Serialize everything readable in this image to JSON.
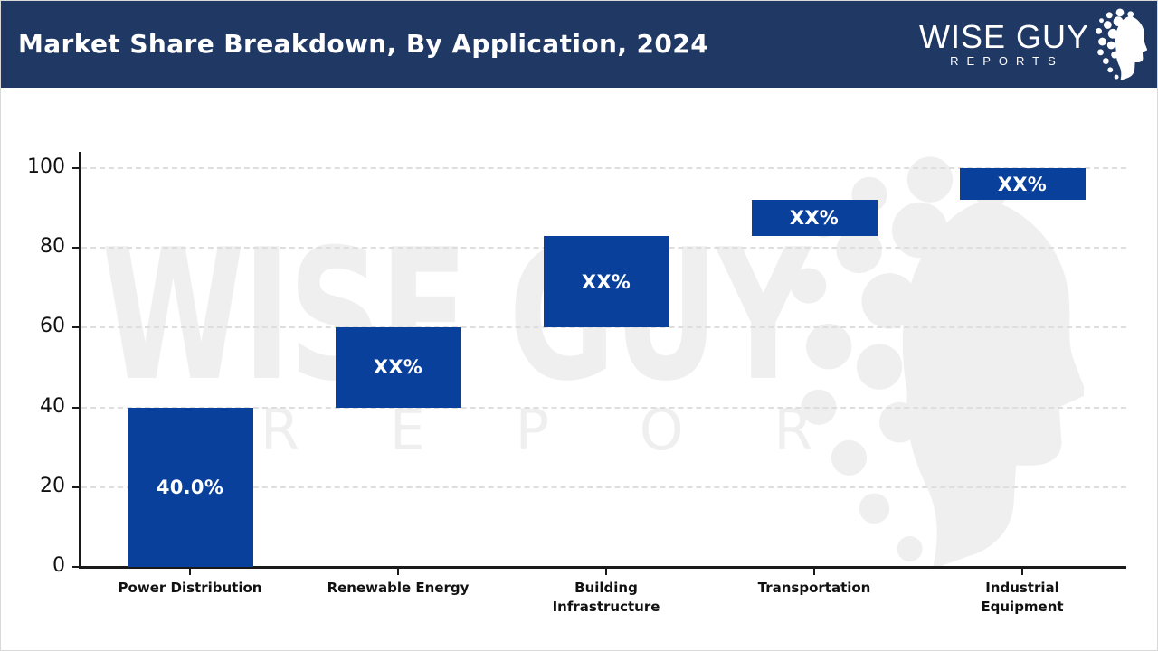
{
  "header": {
    "title": "Market Share Breakdown, By Application, 2024",
    "logo_line1": "WISE GUY",
    "logo_line2": "REPORTS"
  },
  "watermark": {
    "line1": "WISE GUY",
    "line2": "R E P O R T S"
  },
  "chart_data": {
    "type": "waterfall",
    "title": "Market Share Breakdown, By Application, 2024",
    "categories": [
      "Power Distribution",
      "Renewable Energy",
      "Building\nInfrastructure",
      "Transportation",
      "Industrial\nEquipment"
    ],
    "segments": [
      {
        "category": "Power Distribution",
        "start": 0,
        "end": 40,
        "value": 40,
        "label": "40.0%"
      },
      {
        "category": "Renewable Energy",
        "start": 40,
        "end": 60,
        "value": 20,
        "label": "XX%"
      },
      {
        "category": "Building Infrastructure",
        "start": 60,
        "end": 83,
        "value": 23,
        "label": "XX%"
      },
      {
        "category": "Transportation",
        "start": 83,
        "end": 92,
        "value": 9,
        "label": "XX%"
      },
      {
        "category": "Industrial Equipment",
        "start": 92,
        "end": 100,
        "value": 8,
        "label": "XX%"
      }
    ],
    "yticks": [
      0,
      20,
      40,
      60,
      80,
      100
    ],
    "ylim": [
      0,
      105
    ],
    "grid": "dashed horizontal",
    "legend": "none",
    "bar_color": "#08409c",
    "bar_label_color": "#ffffff",
    "axis_color": "#1a1a1a",
    "grid_color": "#dedede",
    "header_bg_color": "#1f3864",
    "watermark_color": "#efefef"
  }
}
